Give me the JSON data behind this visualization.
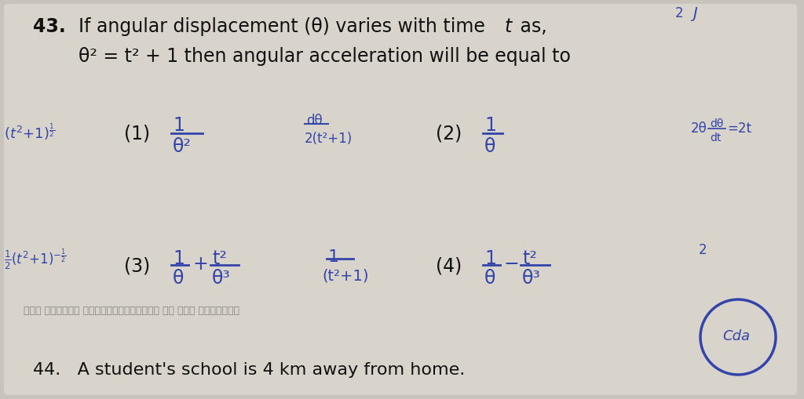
{
  "bg_color": "#c8c4bc",
  "fig_width": 10.24,
  "fig_height": 5.09,
  "dpi": 100,
  "text_color": "#111111",
  "blue_color": "#3344aa",
  "line1_num": "43.",
  "line1_rest": "If angular displacement (θ) varies with time ",
  "line1_t": "t",
  "line1_end": " as,",
  "line2": "θ² = t² + 1 then angular acceleration will be equal to",
  "opt1_num": "(1)",
  "opt2_num": "(2)",
  "opt3_num": "(3)",
  "opt4_num": "(4)",
  "bottom_text": "44.   A student's school is 4 km away from home."
}
